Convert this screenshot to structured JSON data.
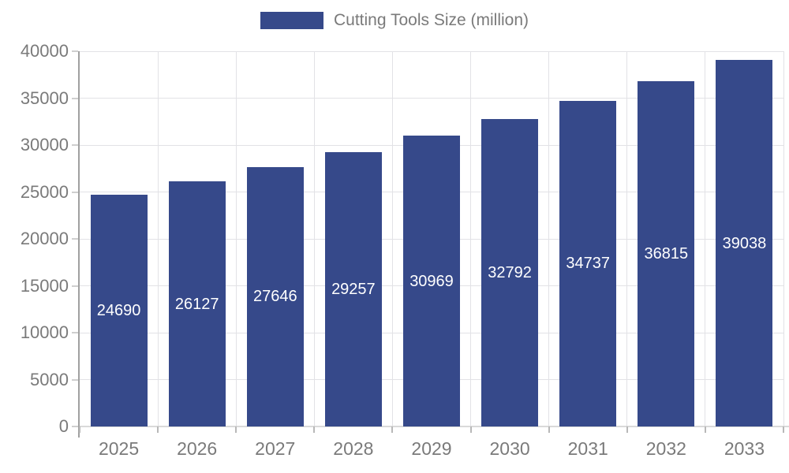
{
  "legend": {
    "label": "Cutting Tools Size (million)"
  },
  "chart_data": {
    "type": "bar",
    "title": "",
    "xlabel": "",
    "ylabel": "",
    "categories": [
      "2025",
      "2026",
      "2027",
      "2028",
      "2029",
      "2030",
      "2031",
      "2032",
      "2033"
    ],
    "series": [
      {
        "name": "Cutting Tools Size (million)",
        "values": [
          24690,
          26127,
          27646,
          29257,
          30969,
          32792,
          34737,
          36815,
          39038
        ]
      }
    ],
    "value_labels_shown": true,
    "value_label_position": "inside-center",
    "ylim": [
      0,
      40000
    ],
    "yticks": [
      0,
      5000,
      10000,
      15000,
      20000,
      25000,
      30000,
      35000,
      40000
    ],
    "grid": true,
    "legend_position": "top-center",
    "colors": {
      "bar": "#36498a",
      "value_label": "#ffffff",
      "axis_text": "#7a7a7a",
      "gridline": "#e2e2e6",
      "y_axis_line": "#a0a0a0",
      "x_axis_line": "#dadada"
    }
  }
}
